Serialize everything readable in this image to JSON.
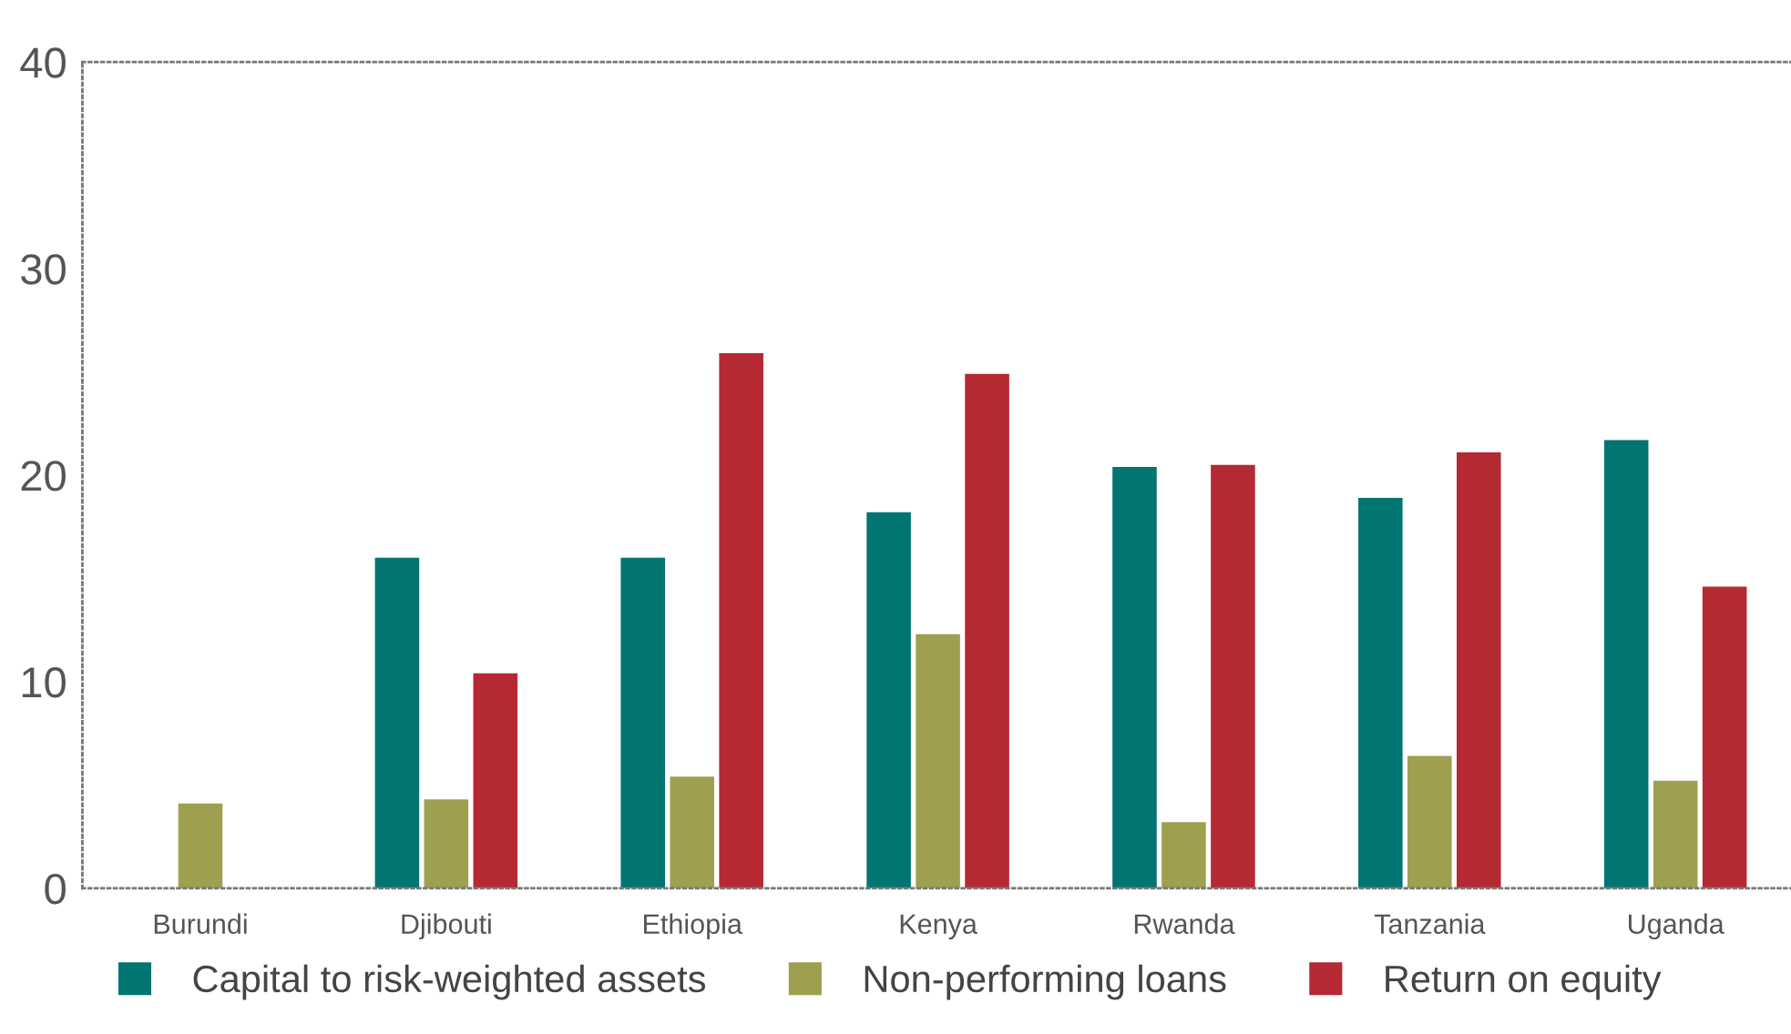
{
  "chart_data": {
    "type": "bar",
    "categories": [
      "Burundi",
      "Djibouti",
      "Ethiopia",
      "Kenya",
      "Rwanda",
      "Tanzania",
      "Uganda"
    ],
    "series": [
      {
        "name": "Capital to risk-weighted assets",
        "color": "#007572",
        "values": [
          null,
          16.0,
          16.0,
          18.2,
          20.4,
          18.9,
          21.7
        ]
      },
      {
        "name": "Non-performing loans",
        "color": "#9ea04f",
        "values": [
          4.1,
          4.3,
          5.4,
          12.3,
          3.2,
          6.4,
          5.2
        ]
      },
      {
        "name": "Return on equity",
        "color": "#b52932",
        "values": [
          null,
          10.4,
          25.9,
          24.9,
          20.5,
          21.1,
          14.6
        ]
      }
    ],
    "ylim": [
      0,
      40
    ],
    "yticks": [
      0,
      10,
      20,
      30,
      40
    ],
    "grid": false,
    "legend": "bottom"
  }
}
